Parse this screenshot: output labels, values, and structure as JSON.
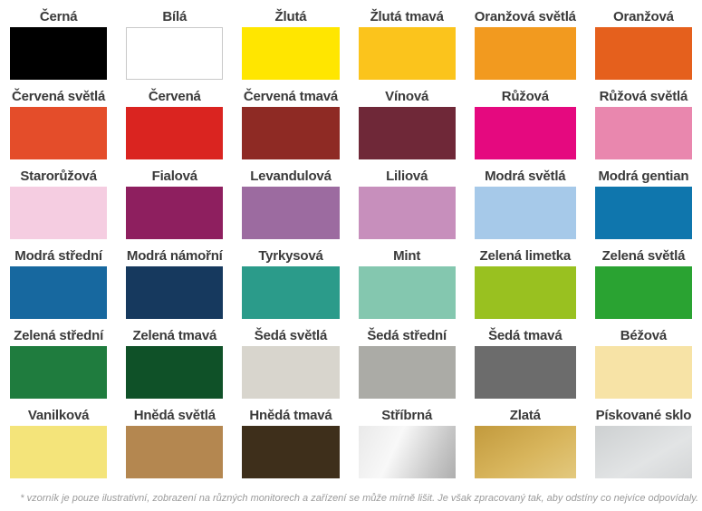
{
  "footnote": "* vzorník je pouze ilustrativní, zobrazení na různých monitorech a zařízení se může mírně lišit. Je však zpracovaný tak, aby odstíny co nejvíce odpovídaly.",
  "swatches": [
    {
      "label": "Černá",
      "color": "#000000"
    },
    {
      "label": "Bílá",
      "color": "#ffffff",
      "border": "#c9c9c9"
    },
    {
      "label": "Žlutá",
      "color": "#ffe600"
    },
    {
      "label": "Žlutá tmavá",
      "color": "#fbc41c"
    },
    {
      "label": "Oranžová světlá",
      "color": "#f29a1f"
    },
    {
      "label": "Oranžová",
      "color": "#e5601d"
    },
    {
      "label": "Červená světlá",
      "color": "#e44d2a"
    },
    {
      "label": "Červená",
      "color": "#da2420"
    },
    {
      "label": "Červená tmavá",
      "color": "#8e2a24"
    },
    {
      "label": "Vínová",
      "color": "#6f2838"
    },
    {
      "label": "Růžová",
      "color": "#e5097f"
    },
    {
      "label": "Růžová světlá",
      "color": "#e987ae"
    },
    {
      "label": "Starorůžová",
      "color": "#f5cde1"
    },
    {
      "label": "Fialová",
      "color": "#8e1f5f"
    },
    {
      "label": "Levandulová",
      "color": "#9c6ba0"
    },
    {
      "label": "Liliová",
      "color": "#c78fbc"
    },
    {
      "label": "Modrá světlá",
      "color": "#a6c9e9"
    },
    {
      "label": "Modrá gentian",
      "color": "#0f76ad"
    },
    {
      "label": "Modrá střední",
      "color": "#17689f"
    },
    {
      "label": "Modrá námořní",
      "color": "#16395e"
    },
    {
      "label": "Tyrkysová",
      "color": "#2b9b8a"
    },
    {
      "label": "Mint",
      "color": "#84c7af"
    },
    {
      "label": "Zelená limetka",
      "color": "#99c120"
    },
    {
      "label": "Zelená světlá",
      "color": "#2aa332"
    },
    {
      "label": "Zelená střední",
      "color": "#1f7c3e"
    },
    {
      "label": "Zelená tmavá",
      "color": "#0f5128"
    },
    {
      "label": "Šedá světlá",
      "color": "#d8d5cd"
    },
    {
      "label": "Šedá střední",
      "color": "#ababa6"
    },
    {
      "label": "Šedá tmavá",
      "color": "#6c6c6c"
    },
    {
      "label": "Béžová",
      "color": "#f7e3a6"
    },
    {
      "label": "Vanilková",
      "color": "#f4e47a"
    },
    {
      "label": "Hnědá světlá",
      "color": "#b48750"
    },
    {
      "label": "Hnědá tmavá",
      "color": "#3e2f1b"
    },
    {
      "label": "Stříbrná",
      "color": "#cccccc",
      "gradient": {
        "direction": "115deg",
        "stops": [
          "#e9e9e9 0%",
          "#f8f8f8 38%",
          "#c6c6c6 78%",
          "#aeaeae 100%"
        ]
      }
    },
    {
      "label": "Zlatá",
      "color": "#d0ab4d",
      "gradient": {
        "direction": "150deg",
        "stops": [
          "#c29a3d 0%",
          "#d8b55c 55%",
          "#e3c97e 100%"
        ]
      }
    },
    {
      "label": "Pískované sklo",
      "color": "#d8dadb",
      "gradient": {
        "direction": "150deg",
        "stops": [
          "#cdd0d1 0%",
          "#e2e4e5 60%",
          "#d4d6d7 100%"
        ]
      }
    }
  ]
}
